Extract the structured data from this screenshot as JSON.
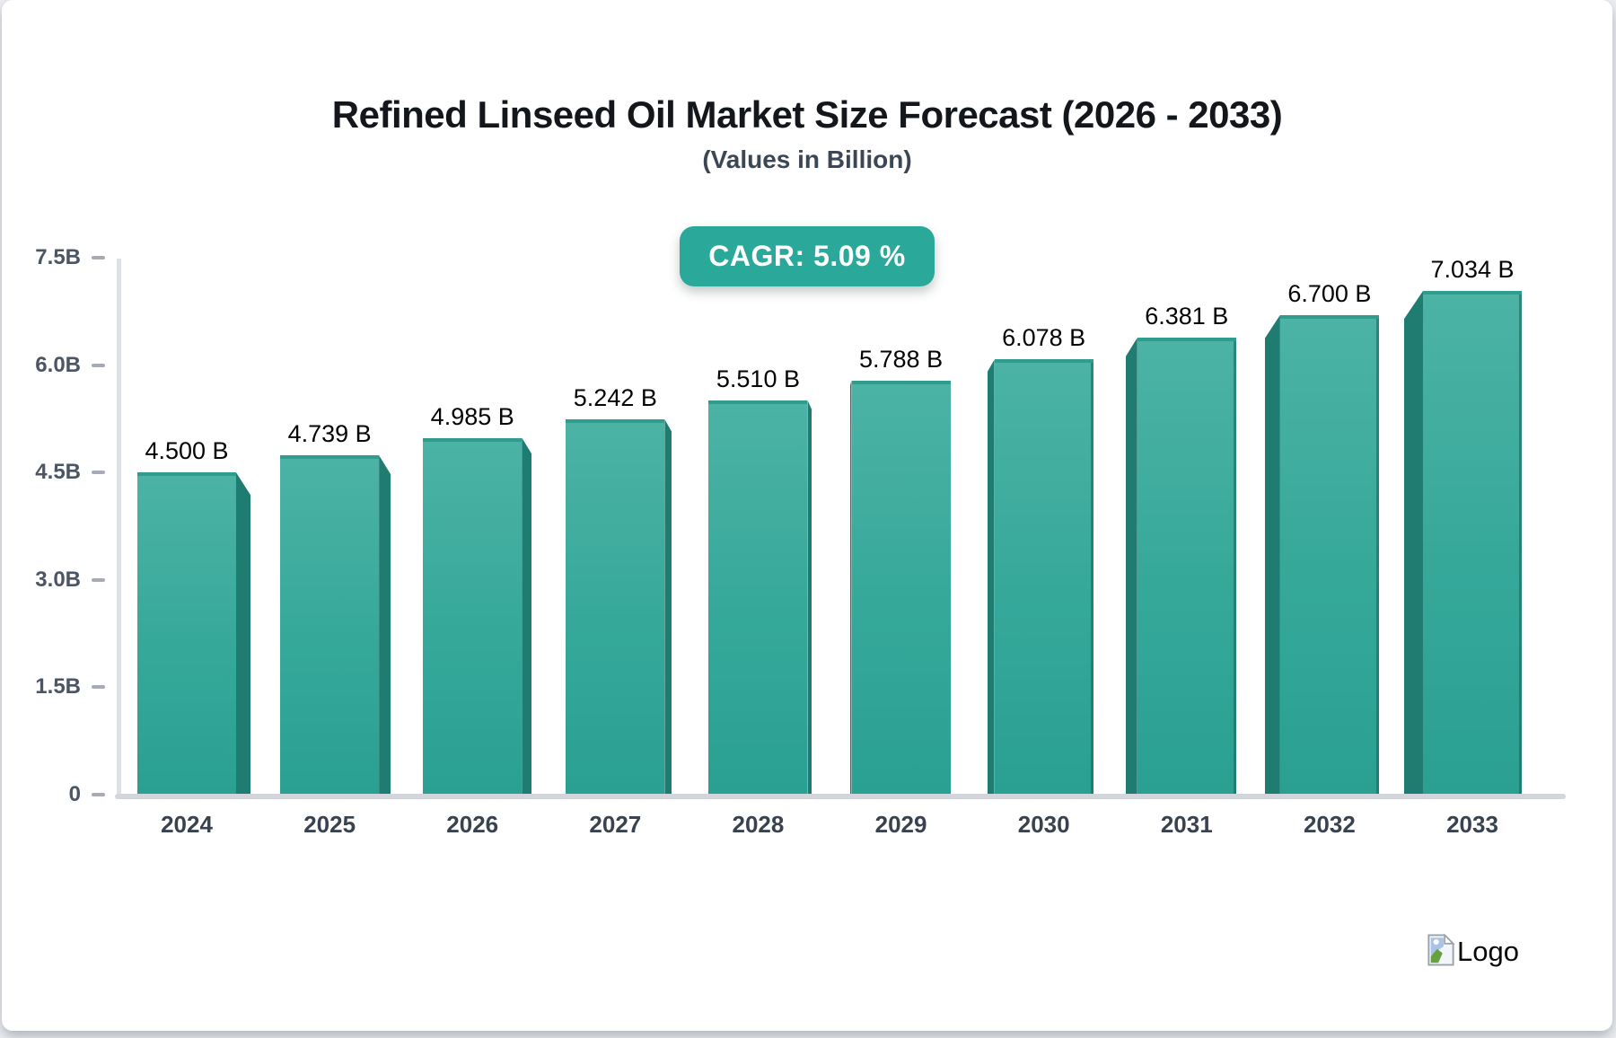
{
  "page": {
    "logo_text": "Logo"
  },
  "chart_data": {
    "type": "bar",
    "title": "Refined Linseed Oil Market Size Forecast (2026 - 2033)",
    "subtitle": "(Values in Billion)",
    "cagr_label": "CAGR: 5.09 %",
    "categories": [
      "2024",
      "2025",
      "2026",
      "2027",
      "2028",
      "2029",
      "2030",
      "2031",
      "2032",
      "2033"
    ],
    "values": [
      4.5,
      4.739,
      4.985,
      5.242,
      5.51,
      5.788,
      6.078,
      6.381,
      6.7,
      7.034
    ],
    "value_labels": [
      "4.500 B",
      "4.739 B",
      "4.985 B",
      "5.242 B",
      "5.510 B",
      "5.788 B",
      "6.078 B",
      "6.381 B",
      "6.700 B",
      "7.034 B"
    ],
    "xlabel": "",
    "ylabel": "",
    "ylim": [
      0,
      7.5
    ],
    "yticks": [
      0,
      1.5,
      3.0,
      4.5,
      6.0,
      7.5
    ],
    "ytick_labels": [
      "0",
      "1.5B",
      "3.0B",
      "4.5B",
      "6.0B",
      "7.5B"
    ],
    "grid": false,
    "legend": "none",
    "bar_style": "3d-perspective",
    "colors": {
      "accent": "#2aa99b",
      "bar_top": "#4cb3a5",
      "bar_bottom": "#2aa092",
      "bar_side": "#1e7c70",
      "axis_line": "#dde0e6",
      "baseline": "#d2d6dc"
    }
  }
}
